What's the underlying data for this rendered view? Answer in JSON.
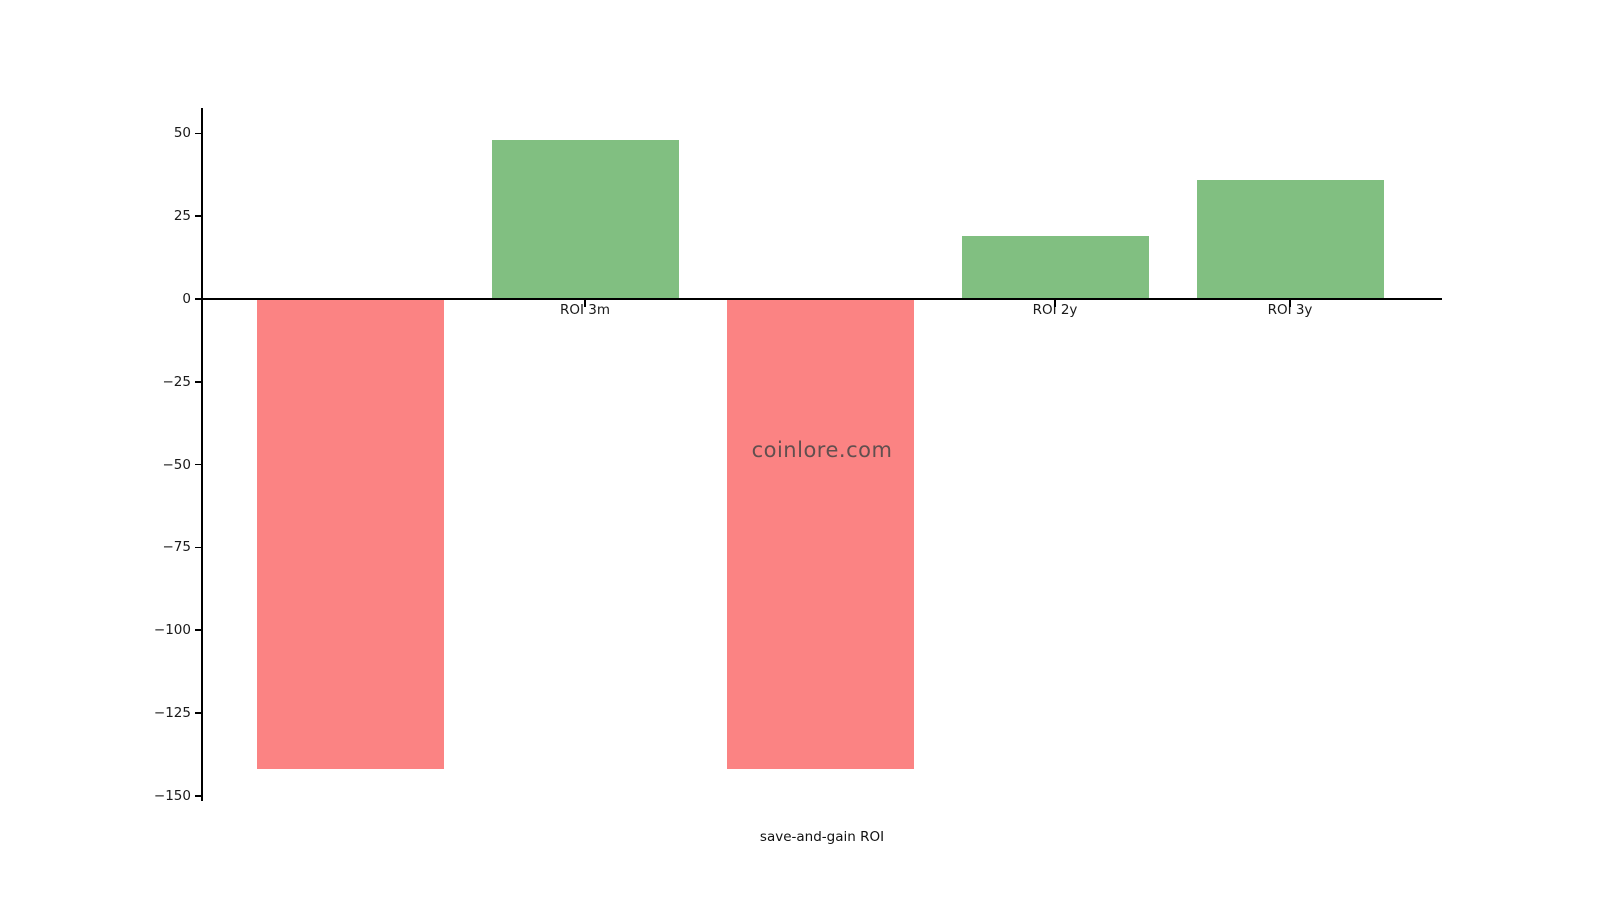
{
  "page": {
    "background": "#ffffff"
  },
  "watermark": "coinlore.com",
  "chart_data": {
    "type": "bar",
    "categories": [
      "",
      "ROI 3m",
      "",
      "ROI 2y",
      "ROI 3y"
    ],
    "values": [
      -142,
      48,
      -142,
      19,
      36
    ],
    "series_note": "single series; first and third x tick labels are hidden behind the tall negative bars",
    "title": "",
    "xlabel": "save-and-gain ROI",
    "ylabel": "",
    "ylim": [
      -151.5,
      57.5
    ],
    "yticks": [
      50,
      25,
      0,
      -25,
      -50,
      -75,
      -100,
      -125,
      -150
    ],
    "grid": false,
    "legend": "none",
    "colors": {
      "positive_bar": "#81bf81",
      "negative_bar": "#fb8383",
      "axis": "#000000",
      "tick_label": "#1a1a1a",
      "watermark_text": "#474747"
    }
  }
}
